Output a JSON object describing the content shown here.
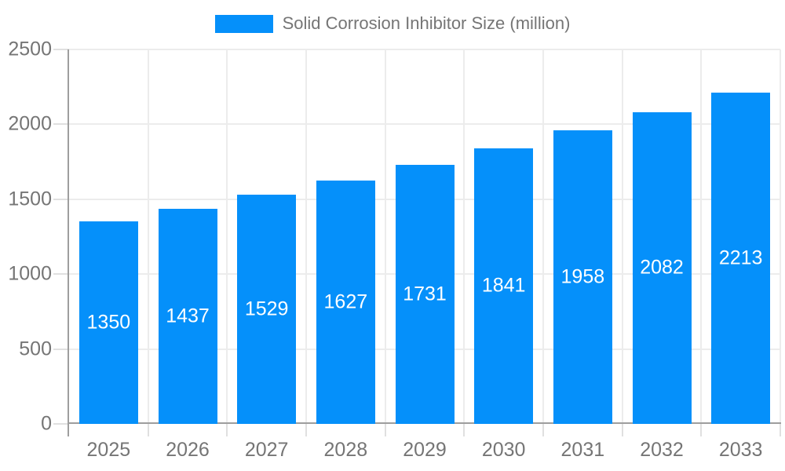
{
  "legend": {
    "label": "Solid Corrosion Inhibitor Size (million)",
    "swatch_color": "#0590fa"
  },
  "chart_data": {
    "type": "bar",
    "title": "Solid Corrosion Inhibitor Size (million)",
    "categories": [
      "2025",
      "2026",
      "2027",
      "2028",
      "2029",
      "2030",
      "2031",
      "2032",
      "2033"
    ],
    "series": [
      {
        "name": "Solid Corrosion Inhibitor Size (million)",
        "values": [
          1350,
          1437,
          1529,
          1627,
          1731,
          1841,
          1958,
          2082,
          2213
        ],
        "color": "#0590fa"
      }
    ],
    "bar_labels_visible": true,
    "bar_label_color": "#ffffff",
    "xlabel": "",
    "ylabel": "",
    "ylim": [
      0,
      2500
    ],
    "yticks": [
      0,
      500,
      1000,
      1500,
      2000,
      2500
    ],
    "grid": true,
    "legend_position": "top",
    "axis_text_color": "#757575"
  }
}
